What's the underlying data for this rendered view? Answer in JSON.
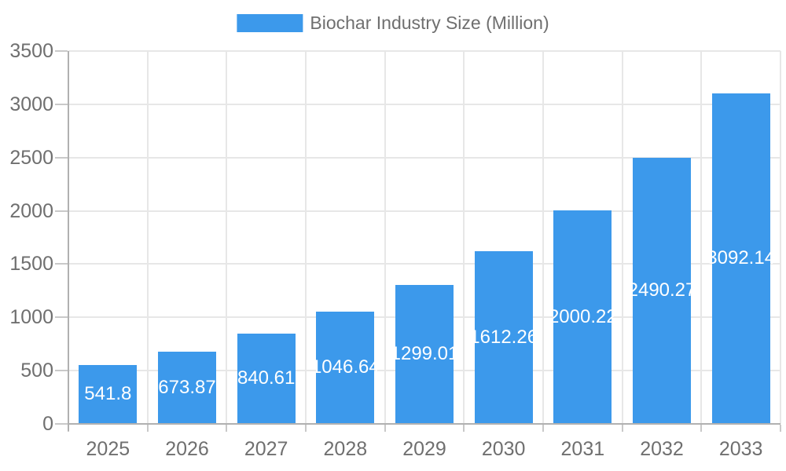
{
  "chart_data": {
    "type": "bar",
    "title": "Biochar Industry Size (Million)",
    "legend": {
      "label": "Biochar Industry Size (Million)",
      "position": "top"
    },
    "categories": [
      "2025",
      "2026",
      "2027",
      "2028",
      "2029",
      "2030",
      "2031",
      "2032",
      "2033"
    ],
    "values": [
      541.8,
      673.87,
      840.61,
      1046.64,
      1299.01,
      1612.26,
      2000.22,
      2490.27,
      3092.14
    ],
    "bar_labels": [
      "541.8",
      "673.87",
      "840.61",
      "1046.64",
      "1299.01",
      "1612.26",
      "2000.22",
      "2490.27",
      "3092.14"
    ],
    "xlabel": "",
    "ylabel": "",
    "ylim": [
      0,
      3500
    ],
    "yticks": [
      0,
      500,
      1000,
      1500,
      2000,
      2500,
      3000,
      3500
    ],
    "grid": true,
    "colors": {
      "bar": "#3C99EB",
      "bar_label_text": "#ffffff",
      "axis_text": "#6f6f6f",
      "gridline": "#e7e7e7",
      "axis_line": "#b1b1b1",
      "tick": "#c9c9c9"
    }
  }
}
